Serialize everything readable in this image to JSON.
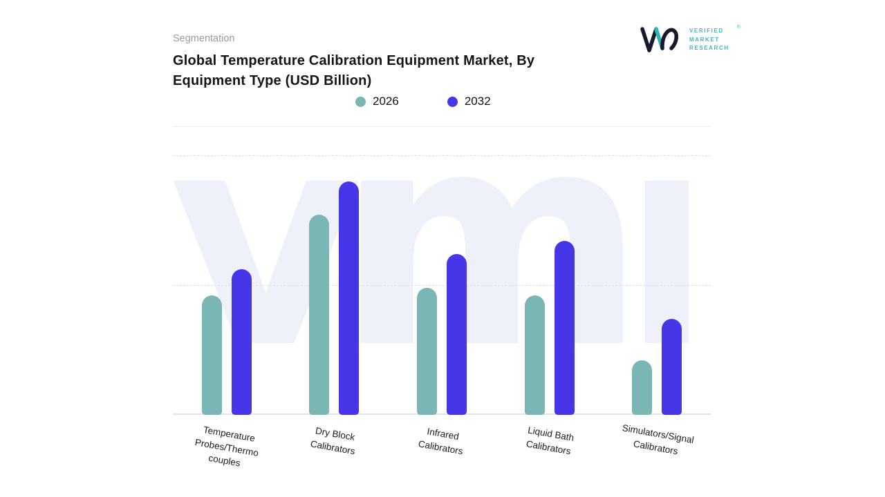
{
  "header": {
    "eyebrow": "Segmentation",
    "title_line1": "Global Temperature Calibration Equipment Market, By",
    "title_line2": "Equipment Type (USD Billion)"
  },
  "logo": {
    "lines": [
      "VERIFIED",
      "MARKET",
      "RESEARCH"
    ],
    "registered": "®"
  },
  "watermark": {
    "text": "vmr"
  },
  "chart_data": {
    "type": "bar",
    "title": "Global Temperature Calibration Equipment Market, By Equipment Type (USD Billion)",
    "unit": "USD Billion",
    "categories": [
      "Temperature\nProbes/Thermo\ncouples",
      "Dry Block\nCalibrators",
      "Infrared\nCalibrators",
      "Liquid Bath\nCalibrators",
      "Simulators/Signal\nCalibrators"
    ],
    "series": [
      {
        "name": "2026",
        "color": "#7ab7b4",
        "values": [
          46,
          77,
          49,
          46,
          21
        ]
      },
      {
        "name": "2032",
        "color": "#4736e8",
        "values": [
          56,
          90,
          62,
          67,
          37
        ]
      }
    ],
    "ylim": [
      0,
      100
    ],
    "y_axis_labels_visible": false,
    "grid": "dashed-horizontal",
    "legend_position": "top-center",
    "bar_corner": "rounded-top"
  }
}
